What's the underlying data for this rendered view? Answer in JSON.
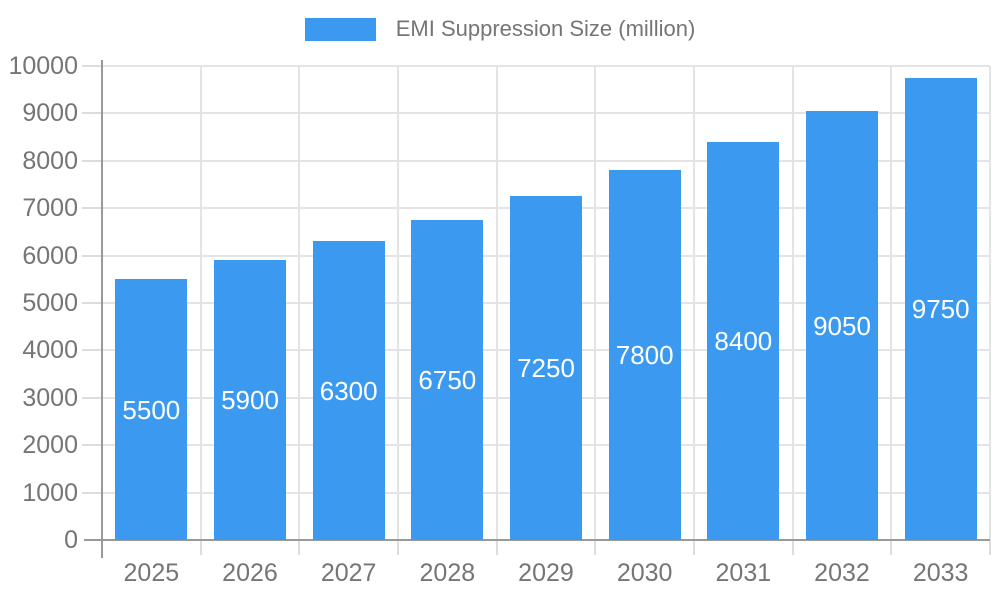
{
  "chart_data": {
    "type": "bar",
    "title": "",
    "xlabel": "",
    "ylabel": "",
    "legend": {
      "position": "top",
      "items": [
        {
          "label": "EMI Suppression Size (million)",
          "color": "#3B9AF0"
        }
      ]
    },
    "categories": [
      "2025",
      "2026",
      "2027",
      "2028",
      "2029",
      "2030",
      "2031",
      "2032",
      "2033"
    ],
    "series": [
      {
        "name": "EMI Suppression Size (million)",
        "values": [
          5500,
          5900,
          6300,
          6750,
          7250,
          7800,
          8400,
          9050,
          9750
        ]
      }
    ],
    "data_labels": {
      "show": true,
      "position": "inside-center",
      "color": "#FFFFFF"
    },
    "ylim": [
      0,
      10000
    ],
    "ytick_step": 1000,
    "grid": true,
    "colors": {
      "bar": "#3B9AF0",
      "axis_line": "#999999",
      "grid_line": "#E4E4E4",
      "tick_mark": "#DDDDDD",
      "tick_label": "#757575",
      "bar_label": "#FFFFFF",
      "background": "#FFFFFF"
    }
  }
}
